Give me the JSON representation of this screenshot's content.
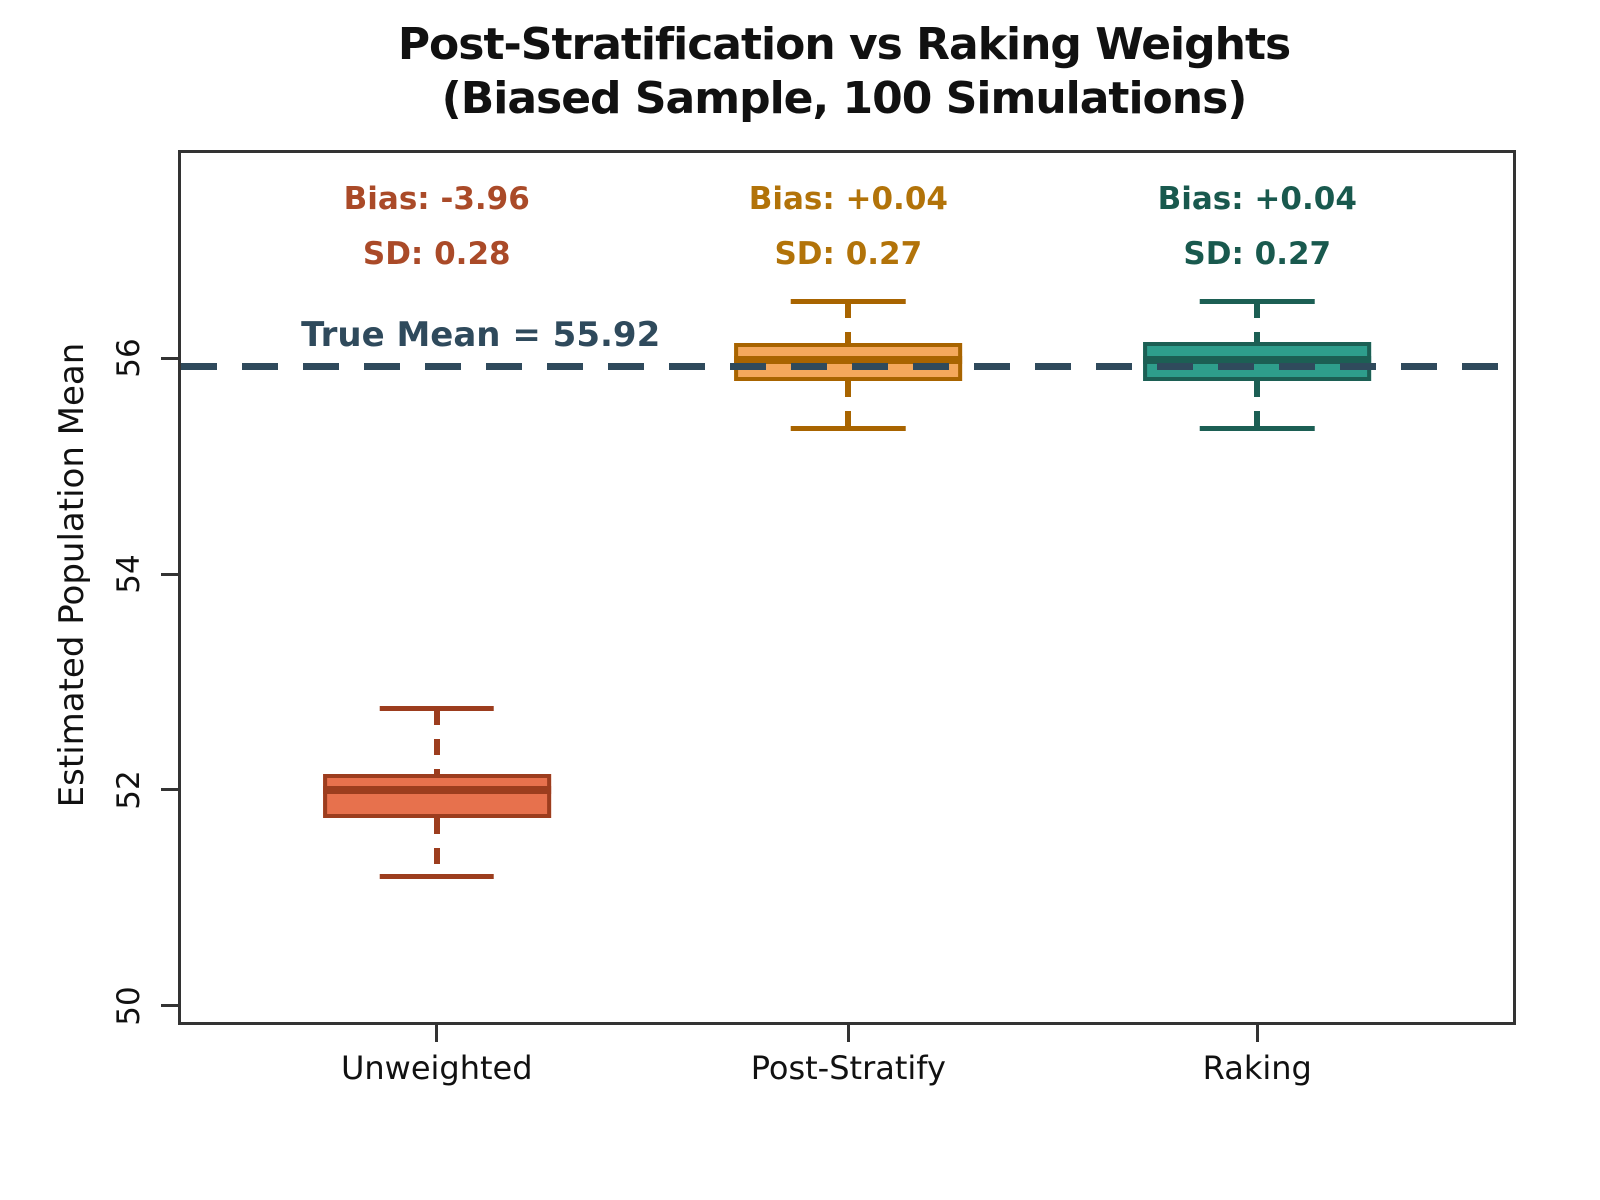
{
  "title": {
    "line1": "Post-Stratification vs Raking Weights",
    "line2": "(Biased Sample, 100 Simulations)"
  },
  "chart_data": {
    "type": "boxplot",
    "title": "Post-Stratification vs Raking Weights",
    "subtitle": "(Biased Sample, 100 Simulations)",
    "xlabel": "",
    "ylabel": "Estimated Population Mean",
    "ylim": [
      49.85,
      57.9
    ],
    "yticks": [
      50,
      52,
      54,
      56
    ],
    "grid": false,
    "legend": "none",
    "reference_line": {
      "value": 55.92,
      "label": "True Mean = 55.92",
      "color": "#2F4A5C",
      "style": "dashed"
    },
    "groups": [
      {
        "label": "Unweighted",
        "bias_label": "Bias: -3.96",
        "sd_label": "SD: 0.28",
        "bias": -3.96,
        "sd": 0.28,
        "whisker_low": 51.2,
        "q1": 51.74,
        "median": 52.0,
        "q3": 52.15,
        "whisker_high": 52.75,
        "fill_color": "#E7714D",
        "stroke_color": "#9C3D1E",
        "text_color": "#AA4A28"
      },
      {
        "label": "Post-Stratify",
        "bias_label": "Bias: +0.04",
        "sd_label": "SD: 0.27",
        "bias": 0.04,
        "sd": 0.27,
        "whisker_low": 55.35,
        "q1": 55.79,
        "median": 55.98,
        "q3": 56.14,
        "whisker_high": 56.52,
        "fill_color": "#F4A85C",
        "stroke_color": "#A86400",
        "text_color": "#B27309"
      },
      {
        "label": "Raking",
        "bias_label": "Bias: +0.04",
        "sd_label": "SD: 0.27",
        "bias": 0.04,
        "sd": 0.27,
        "whisker_low": 55.35,
        "q1": 55.79,
        "median": 55.98,
        "q3": 56.15,
        "whisker_high": 56.52,
        "fill_color": "#2E9E8C",
        "stroke_color": "#1C5F54",
        "text_color": "#19594E"
      }
    ]
  }
}
